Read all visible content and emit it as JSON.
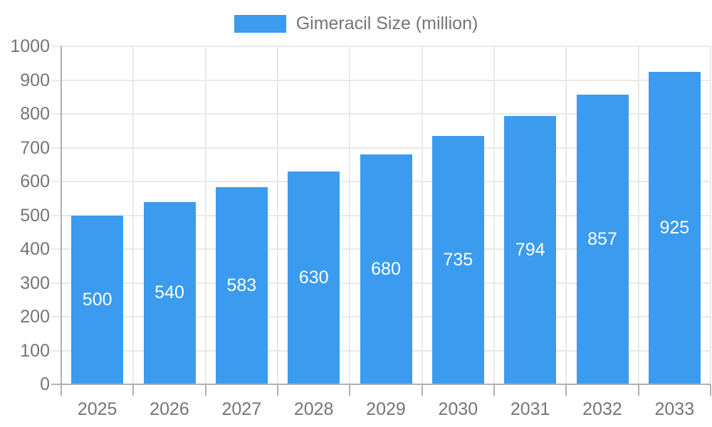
{
  "legend": {
    "label": "Gimeracil Size (million)"
  },
  "chart_data": {
    "type": "bar",
    "title": "",
    "xlabel": "",
    "ylabel": "",
    "categories": [
      "2025",
      "2026",
      "2027",
      "2028",
      "2029",
      "2030",
      "2031",
      "2032",
      "2033"
    ],
    "series": [
      {
        "name": "Gimeracil Size (million)",
        "values": [
          500,
          540,
          583,
          630,
          680,
          735,
          794,
          857,
          925
        ]
      }
    ],
    "value_labels_shown": true,
    "ylim": [
      0,
      1000
    ],
    "yticks": [
      0,
      100,
      200,
      300,
      400,
      500,
      600,
      700,
      800,
      900,
      1000
    ],
    "grid": true,
    "legend_position": "top-center",
    "colors": {
      "bar": "#3B9BEE",
      "value_label": "#FFFFFF",
      "axis_text": "#757575",
      "gridline": "#E9E9E9",
      "axis_line": "#B0B0B0"
    }
  }
}
